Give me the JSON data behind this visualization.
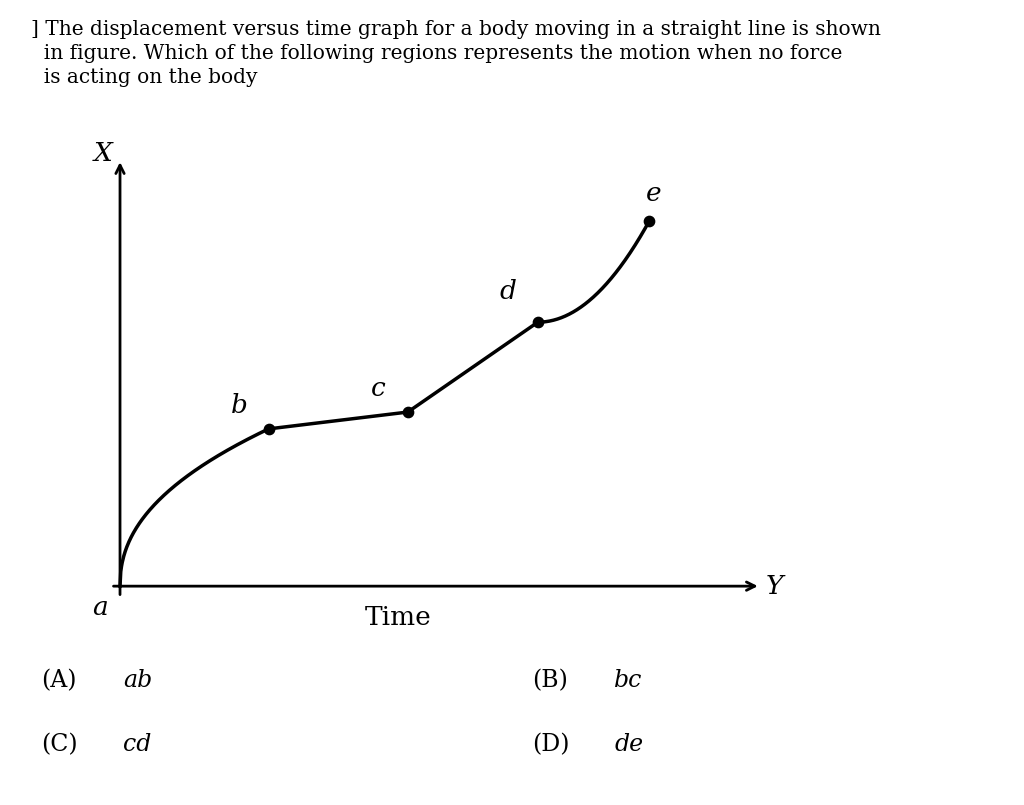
{
  "title_line1": "] The displacement versus time graph for a body moving in a straight line is shown",
  "title_line2": "  in figure. Which of the following regions represents the motion when no force",
  "title_line3": "  is acting on the body",
  "xlabel": "Time",
  "ylabel_x": "X",
  "ylabel_y": "Y",
  "background_color": "#ffffff",
  "curve_color": "#000000",
  "curve_linewidth": 2.5,
  "dot_color": "#000000",
  "dot_size": 55,
  "points": {
    "a": [
      0.0,
      0.0
    ],
    "b": [
      1.6,
      2.8
    ],
    "c": [
      3.1,
      3.1
    ],
    "d": [
      4.5,
      4.7
    ],
    "e": [
      5.7,
      6.5
    ]
  },
  "xlim": [
    -0.3,
    7.2
  ],
  "ylim": [
    -0.6,
    8.0
  ],
  "options": [
    [
      "(A)",
      "ab",
      "(B)",
      "bc"
    ],
    [
      "(C)",
      "cd",
      "(D)",
      "de"
    ]
  ],
  "options_fontsize": 17,
  "label_fontsize": 19,
  "title_fontsize": 14.5
}
